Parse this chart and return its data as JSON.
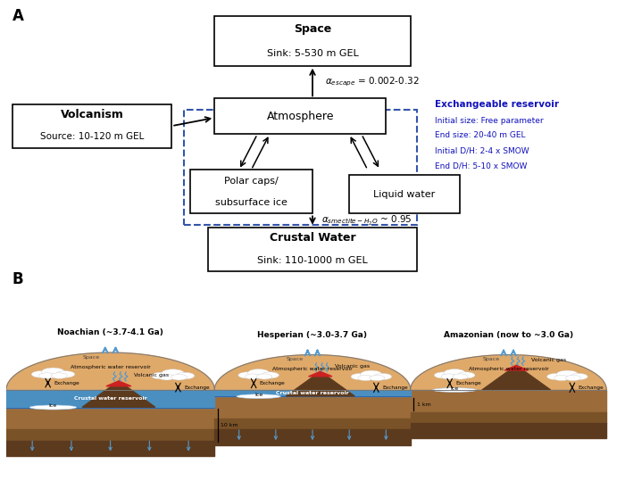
{
  "era_titles": [
    "Noachian (~3.7-4.1 Ga)",
    "Hesperian (~3.0-3.7 Ga)",
    "Amazonian (now to ~3.0 Ga)"
  ],
  "exchangeable_lines": [
    "Initial size: Free parameter",
    "End size: 20-40 m GEL",
    "Initial D/H: 2-4 x SMOW",
    "End D/H: 5-10 x SMOW"
  ],
  "atm_color": "#DFA96A",
  "ocean_color": "#4A8FC0",
  "ground_color_top": "#9B6B3A",
  "ground_color_mid": "#7A5228",
  "ground_color_bot": "#5C3A1E",
  "volcano_brown": "#5C3A1E",
  "volcano_red": "#CC2222",
  "arrow_blue": "#5599CC",
  "bg_color": "#FFFFFF",
  "blue_text": "#1111BB",
  "dashed_box_color": "#3355AA"
}
